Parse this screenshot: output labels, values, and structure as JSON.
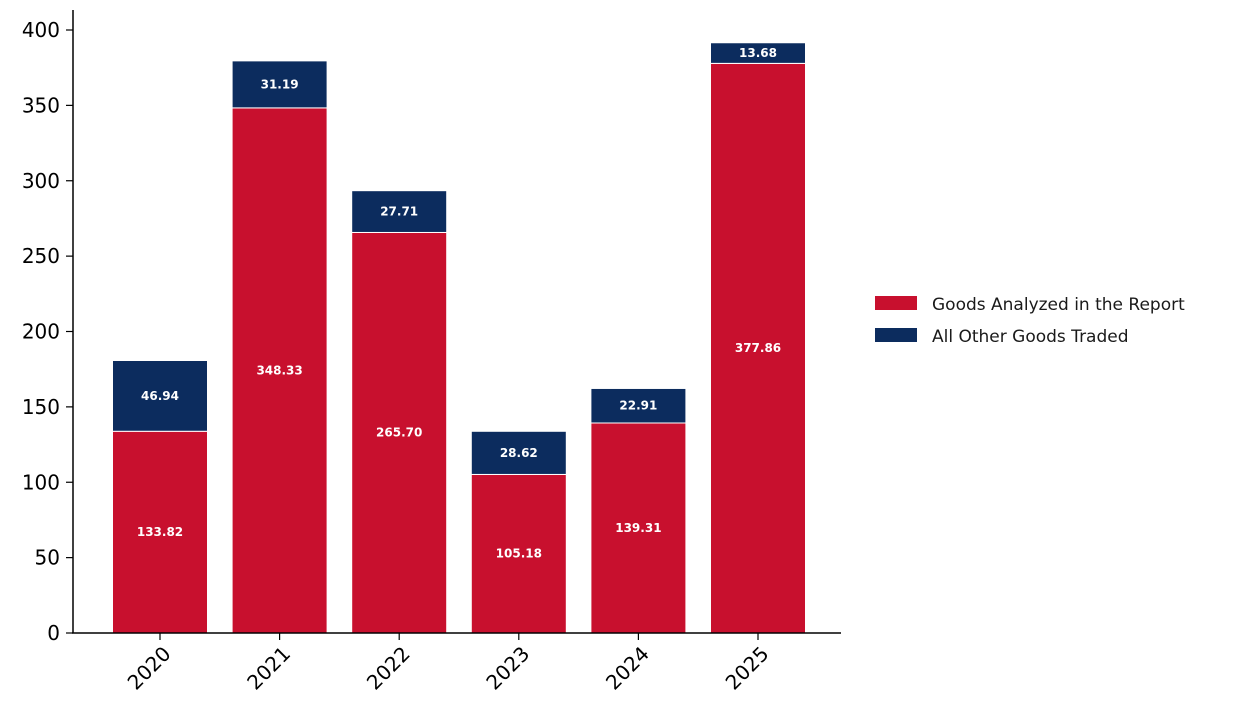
{
  "chart_data": {
    "type": "bar",
    "stacked": true,
    "title": "",
    "xlabel": "",
    "ylabel": "",
    "categories": [
      "2020",
      "2021",
      "2022",
      "2023",
      "2024",
      "2025"
    ],
    "series": [
      {
        "name": "Goods Analyzed in the Report",
        "color": "#c8102e",
        "values": [
          133.82,
          348.33,
          265.7,
          105.18,
          139.31,
          377.86
        ],
        "labels": [
          "133.82",
          "348.33",
          "265.70",
          "105.18",
          "139.31",
          "377.86"
        ]
      },
      {
        "name": "All Other Goods Traded",
        "color": "#0c2c5e",
        "values": [
          46.94,
          31.19,
          27.71,
          28.62,
          22.91,
          13.68
        ],
        "labels": [
          "46.94",
          "31.19",
          "27.71",
          "28.62",
          "22.91",
          "13.68"
        ]
      }
    ],
    "ylim": [
      0,
      400
    ],
    "yticks": [
      0,
      50,
      100,
      150,
      200,
      250,
      300,
      350,
      400
    ],
    "ytick_labels": [
      "0",
      "50",
      "100",
      "150",
      "200",
      "250",
      "300",
      "350",
      "400"
    ],
    "grid": false,
    "legend_position": "right"
  }
}
